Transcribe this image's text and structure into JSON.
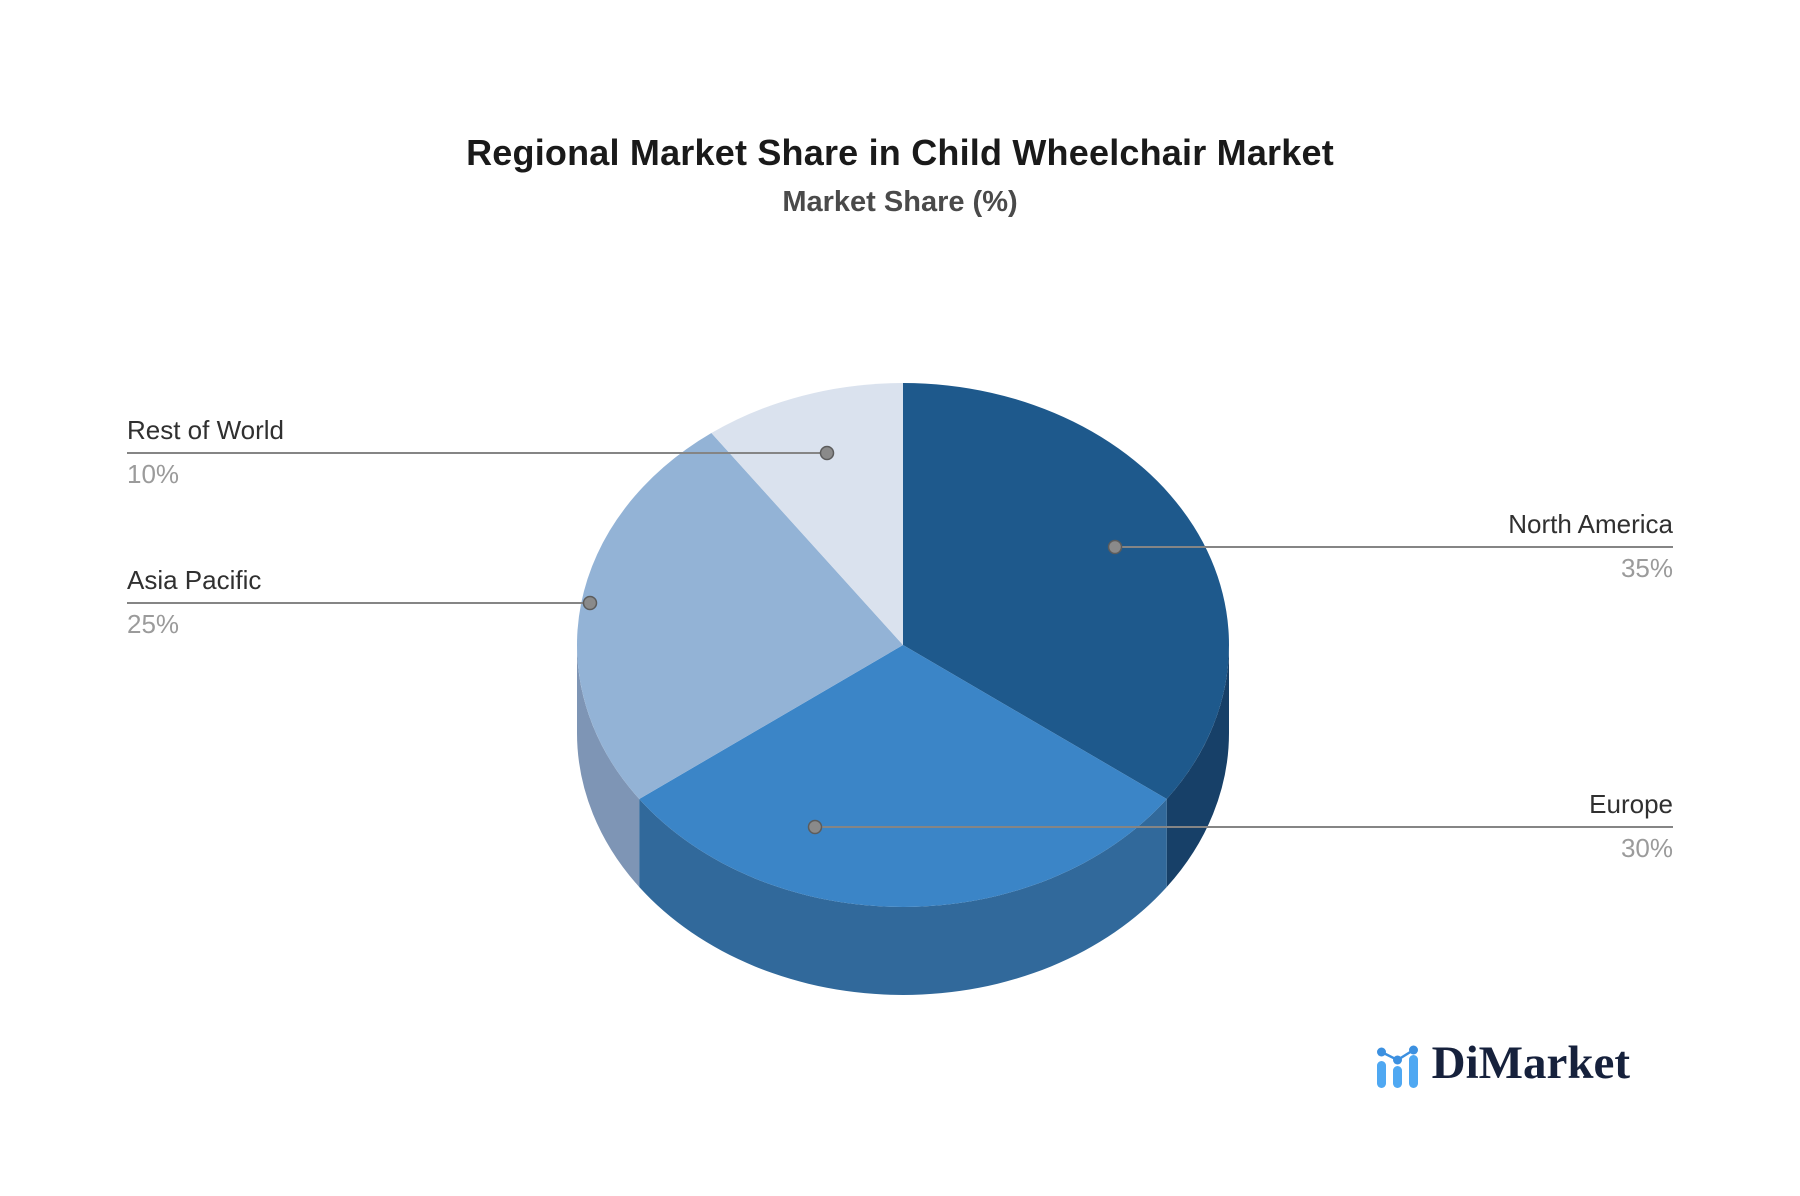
{
  "header": {
    "title": "Regional Market Share in Child Wheelchair Market",
    "subtitle": "Market Share (%)"
  },
  "chart_data": {
    "type": "pie",
    "style": "3d-extruded",
    "title": "Regional Market Share in Child Wheelchair Market",
    "subtitle": "Market Share (%)",
    "unit": "%",
    "start_angle_deg": 90,
    "direction": "clockwise",
    "legend_position": "callout-labels",
    "slices": [
      {
        "label": "North America",
        "value": 35,
        "display": "35%",
        "color": "#1E598C",
        "side_color": "#174068"
      },
      {
        "label": "Europe",
        "value": 30,
        "display": "30%",
        "color": "#3B85C7",
        "side_color": "#31699B"
      },
      {
        "label": "Asia Pacific",
        "value": 25,
        "display": "25%",
        "color": "#93B3D6",
        "side_color": "#7E95B5"
      },
      {
        "label": "Rest of World",
        "value": 10,
        "display": "10%",
        "color": "#DAE2EE",
        "side_color": "#B9C4D6"
      }
    ]
  },
  "callout_style": {
    "line_color": "#858585",
    "dot_fill": "#8a8a8a",
    "dot_stroke": "#5c5c5c",
    "name_color": "#303030",
    "value_color": "#9b9b9b"
  },
  "logo": {
    "text": "DiMarket",
    "icon": "bar-line-chart-icon",
    "text_color": "#16213c",
    "bar_color": "#4FA8F2",
    "line_color": "#3C90E0"
  }
}
